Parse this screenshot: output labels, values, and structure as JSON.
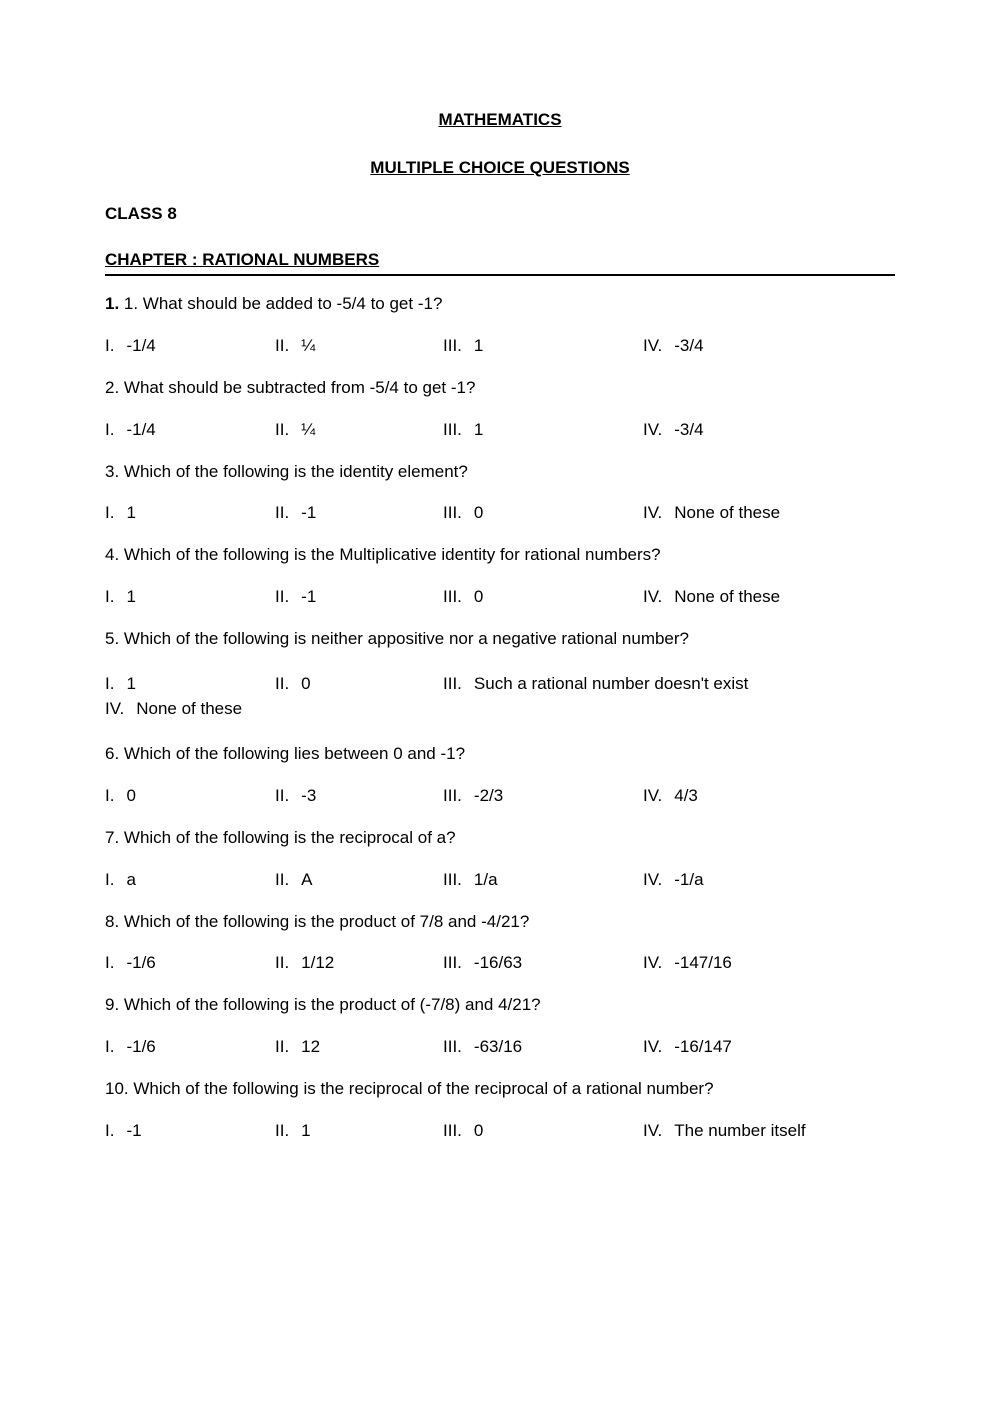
{
  "header": {
    "title": "MATHEMATICS",
    "subtitle": "MULTIPLE CHOICE QUESTIONS",
    "class_label": "CLASS 8",
    "chapter_label": "CHAPTER : RATIONAL NUMBERS"
  },
  "questions": [
    {
      "prefix": "1. ",
      "num": "1.",
      "text": "What should be added to -5/4 to get -1?",
      "options": [
        "-1/4",
        "¼",
        "1",
        "-3/4"
      ],
      "layout": "standard"
    },
    {
      "prefix": "",
      "num": "2.",
      "text": "What should be subtracted from -5/4 to get -1?",
      "options": [
        "-1/4",
        "¼",
        "1",
        "-3/4"
      ],
      "layout": "standard"
    },
    {
      "prefix": "",
      "num": "3.",
      "text": "Which of the following is the identity element?",
      "options": [
        "1",
        "-1",
        "0",
        "None of these"
      ],
      "layout": "standard"
    },
    {
      "prefix": "",
      "num": "4.",
      "text": "Which of the following is the Multiplicative identity for rational numbers?",
      "options": [
        "1",
        "-1",
        "0",
        "None of these"
      ],
      "layout": "standard"
    },
    {
      "prefix": "",
      "num": "5.",
      "text": "Which of the following is neither appositive nor a negative rational number?",
      "options": [
        "1",
        "0",
        "Such a rational number doesn't exist",
        "None of these"
      ],
      "layout": "wrap"
    },
    {
      "prefix": "",
      "num": "6.",
      "text": "Which of the following lies between 0 and -1?",
      "options": [
        "0",
        "-3",
        "-2/3",
        "4/3"
      ],
      "layout": "standard"
    },
    {
      "prefix": "",
      "num": "7.",
      "text": "Which of the following is the reciprocal of a?",
      "options": [
        "a",
        "A",
        "1/a",
        "-1/a"
      ],
      "layout": "standard"
    },
    {
      "prefix": "",
      "num": "8.",
      "text": "Which of the following is the product of 7/8 and -4/21?",
      "options": [
        "-1/6",
        "1/12",
        "-16/63",
        "-147/16"
      ],
      "layout": "standard"
    },
    {
      "prefix": "",
      "num": "9.",
      "text": "Which of the following is the product of (-7/8) and 4/21?",
      "options": [
        "-1/6",
        "12",
        "-63/16",
        "-16/147"
      ],
      "layout": "standard"
    },
    {
      "prefix": "",
      "num": "10.",
      "text": "Which of the following is the reciprocal of the reciprocal of a rational number?",
      "options": [
        "-1",
        "1",
        "0",
        "The number itself"
      ],
      "layout": "standard"
    }
  ],
  "roman": [
    "I.",
    "II.",
    "III.",
    "IV."
  ]
}
